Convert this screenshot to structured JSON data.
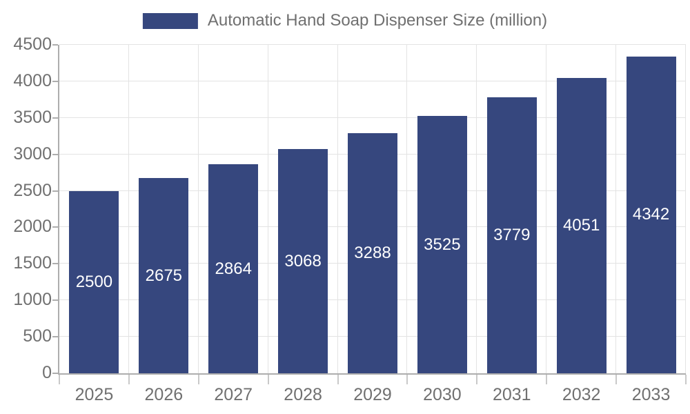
{
  "chart_data": {
    "type": "bar",
    "title": "Automatic Hand Soap Dispenser Size (million)",
    "categories": [
      "2025",
      "2026",
      "2027",
      "2028",
      "2029",
      "2030",
      "2031",
      "2032",
      "2033"
    ],
    "series": [
      {
        "name": "Automatic Hand Soap Dispenser Size (million)",
        "values": [
          2500,
          2675,
          2864,
          3068,
          3288,
          3525,
          3779,
          4051,
          4342
        ]
      }
    ],
    "bar_value_labels": [
      "2500",
      "2675",
      "2864",
      "3068",
      "3288",
      "3525",
      "3779",
      "4051",
      "4342"
    ],
    "xlabel": "",
    "ylabel": "",
    "ylim": [
      0,
      4500
    ],
    "yticks": [
      0,
      500,
      1000,
      1500,
      2000,
      2500,
      3000,
      3500,
      4000,
      4500
    ],
    "grid": "horizontal-and-vertical",
    "legend_position": "top-center",
    "colors": {
      "bar": "#36477E",
      "bar_label_text": "#FFFFFF",
      "axis_text": "#707070",
      "legend_text": "#707070",
      "gridline": "#E3E3E3",
      "spine": "#ADADAD",
      "xtick": "#C9C9C9",
      "background": "#FFFFFF"
    }
  }
}
